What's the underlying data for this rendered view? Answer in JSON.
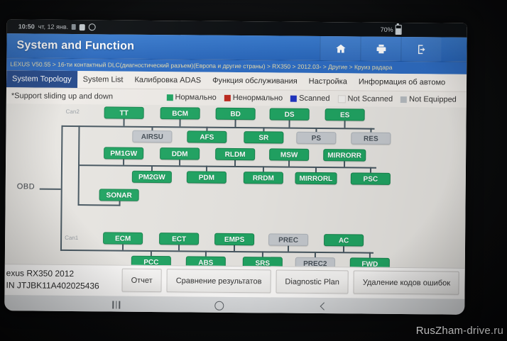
{
  "photo": {
    "watermark": "RusZham-drive.ru"
  },
  "status_bar": {
    "time": "10:50",
    "date": "чт, 12 янв.",
    "battery": "70%"
  },
  "title_bar": {
    "title": "System and Function",
    "icons": [
      "home-icon",
      "printer-icon",
      "exit-icon"
    ]
  },
  "breadcrumb": {
    "path": "LEXUS V50.55 > 16-ти контактный DLC(диагностический разъем)(Европа и другие страны) > RX350 > 2012.03- > Другие > Круиз радара"
  },
  "tabs": [
    {
      "label": "System Topology",
      "selected": true
    },
    {
      "label": "System List",
      "selected": false
    },
    {
      "label": "Калибровка ADAS",
      "selected": false
    },
    {
      "label": "Функция обслуживания",
      "selected": false
    },
    {
      "label": "Настройка",
      "selected": false
    },
    {
      "label": "Информация об автомо",
      "selected": false
    }
  ],
  "note": "*Support sliding up and down",
  "legend": [
    {
      "label": "Нормально",
      "color": "#21a664",
      "light": false
    },
    {
      "label": "Ненормально",
      "color": "#c02b20",
      "light": false
    },
    {
      "label": "Scanned",
      "color": "#2236c4",
      "light": false
    },
    {
      "label": "Not Scanned",
      "color": "#f4f3f1",
      "light": true
    },
    {
      "label": "Not Equipped",
      "color": "#b9bec3",
      "light": false
    }
  ],
  "topology": {
    "bus_labels": [
      "Can2",
      "Can1"
    ],
    "obd_label": "OBD",
    "colors": {
      "normal": "#21a664",
      "not_equipped": "#c7cbd0"
    },
    "rows": [
      {
        "nodes": [
          {
            "label": "TT",
            "status": "normal"
          },
          {
            "label": "BCM",
            "status": "normal"
          },
          {
            "label": "BD",
            "status": "normal"
          },
          {
            "label": "DS",
            "status": "normal"
          },
          {
            "label": "ES",
            "status": "normal"
          }
        ]
      },
      {
        "nodes": [
          {
            "label": "AIRSU",
            "status": "not_equipped"
          },
          {
            "label": "AFS",
            "status": "normal"
          },
          {
            "label": "SR",
            "status": "normal"
          },
          {
            "label": "PS",
            "status": "not_equipped"
          },
          {
            "label": "RES",
            "status": "not_equipped"
          }
        ]
      },
      {
        "nodes": [
          {
            "label": "PM1GW",
            "status": "normal"
          },
          {
            "label": "DDM",
            "status": "normal"
          },
          {
            "label": "RLDM",
            "status": "normal"
          },
          {
            "label": "MSW",
            "status": "normal"
          },
          {
            "label": "MIRRORR",
            "status": "normal"
          }
        ]
      },
      {
        "nodes": [
          {
            "label": "PM2GW",
            "status": "normal"
          },
          {
            "label": "PDM",
            "status": "normal"
          },
          {
            "label": "RRDM",
            "status": "normal"
          },
          {
            "label": "MIRRORL",
            "status": "normal"
          },
          {
            "label": "PSC",
            "status": "normal"
          }
        ]
      },
      {
        "nodes": [
          {
            "label": "SONAR",
            "status": "normal"
          }
        ]
      },
      {
        "nodes": [
          {
            "label": "ECM",
            "status": "normal"
          },
          {
            "label": "ECT",
            "status": "normal"
          },
          {
            "label": "EMPS",
            "status": "normal"
          },
          {
            "label": "PREC",
            "status": "not_equipped"
          },
          {
            "label": "AC",
            "status": "normal"
          }
        ]
      },
      {
        "nodes": [
          {
            "label": "PCC",
            "status": "normal"
          },
          {
            "label": "ABS",
            "status": "normal"
          },
          {
            "label": "SRS",
            "status": "normal"
          },
          {
            "label": "PREC2",
            "status": "not_equipped"
          },
          {
            "label": "FWD",
            "status": "normal"
          }
        ]
      }
    ]
  },
  "footer": {
    "vehicle_line1": "exus RX350 2012",
    "vehicle_line2": "IN JTJBK11A402025436",
    "buttons": [
      "Отчет",
      "Сравнение результатов",
      "Diagnostic Plan",
      "Удаление кодов ошибок"
    ]
  },
  "nav_bar": {
    "icons": [
      "recents-icon",
      "home-circle-icon",
      "back-icon"
    ]
  }
}
